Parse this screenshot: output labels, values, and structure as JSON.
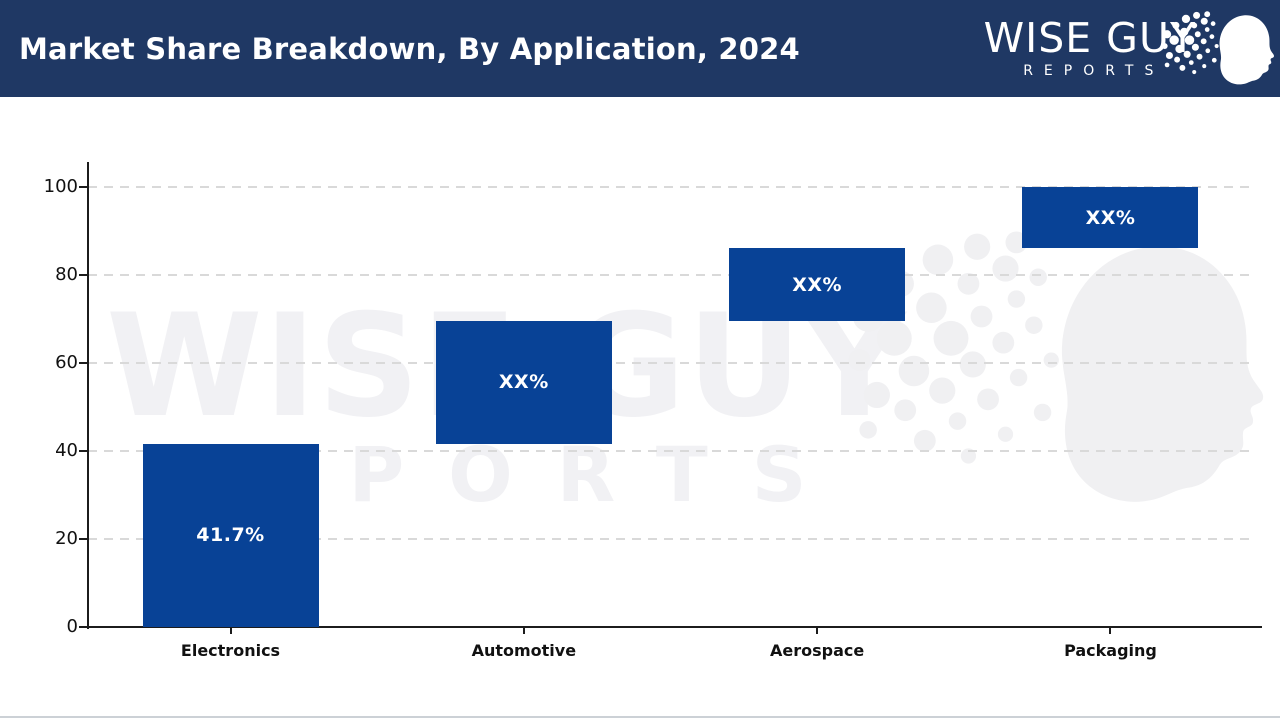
{
  "header": {
    "title": "Market Share Breakdown, By Application, 2024",
    "logo": {
      "line1": "WISE GUY",
      "line2": "REPORTS"
    }
  },
  "watermark": {
    "line1": "WISE GUY",
    "line2": "REPORTS"
  },
  "colors": {
    "header_bg": "#1f3864",
    "bar": "#084296",
    "grid": "#d9d9d9",
    "axis": "#1c1c1c",
    "value_label": "#ffffff",
    "watermark": "#f1f1f4"
  },
  "chart_data": {
    "type": "bar",
    "subtype": "waterfall",
    "title": "Market Share Breakdown, By Application, 2024",
    "categories": [
      "Electronics",
      "Automotive",
      "Aerospace",
      "Packaging"
    ],
    "series": [
      {
        "name": "Market Share",
        "segments": [
          {
            "category": "Electronics",
            "start": 0,
            "end": 41.7,
            "label": "41.7%"
          },
          {
            "category": "Automotive",
            "start": 41.7,
            "end": 69.5,
            "label": "XX%"
          },
          {
            "category": "Aerospace",
            "start": 69.5,
            "end": 86.1,
            "label": "XX%"
          },
          {
            "category": "Packaging",
            "start": 86.1,
            "end": 100,
            "label": "XX%"
          }
        ]
      }
    ],
    "xlabel": "",
    "ylabel": "",
    "ylim": [
      0,
      100
    ],
    "yticks": [
      0,
      20,
      40,
      60,
      80,
      100
    ],
    "grid": "horizontal-dashed",
    "legend": "none"
  }
}
